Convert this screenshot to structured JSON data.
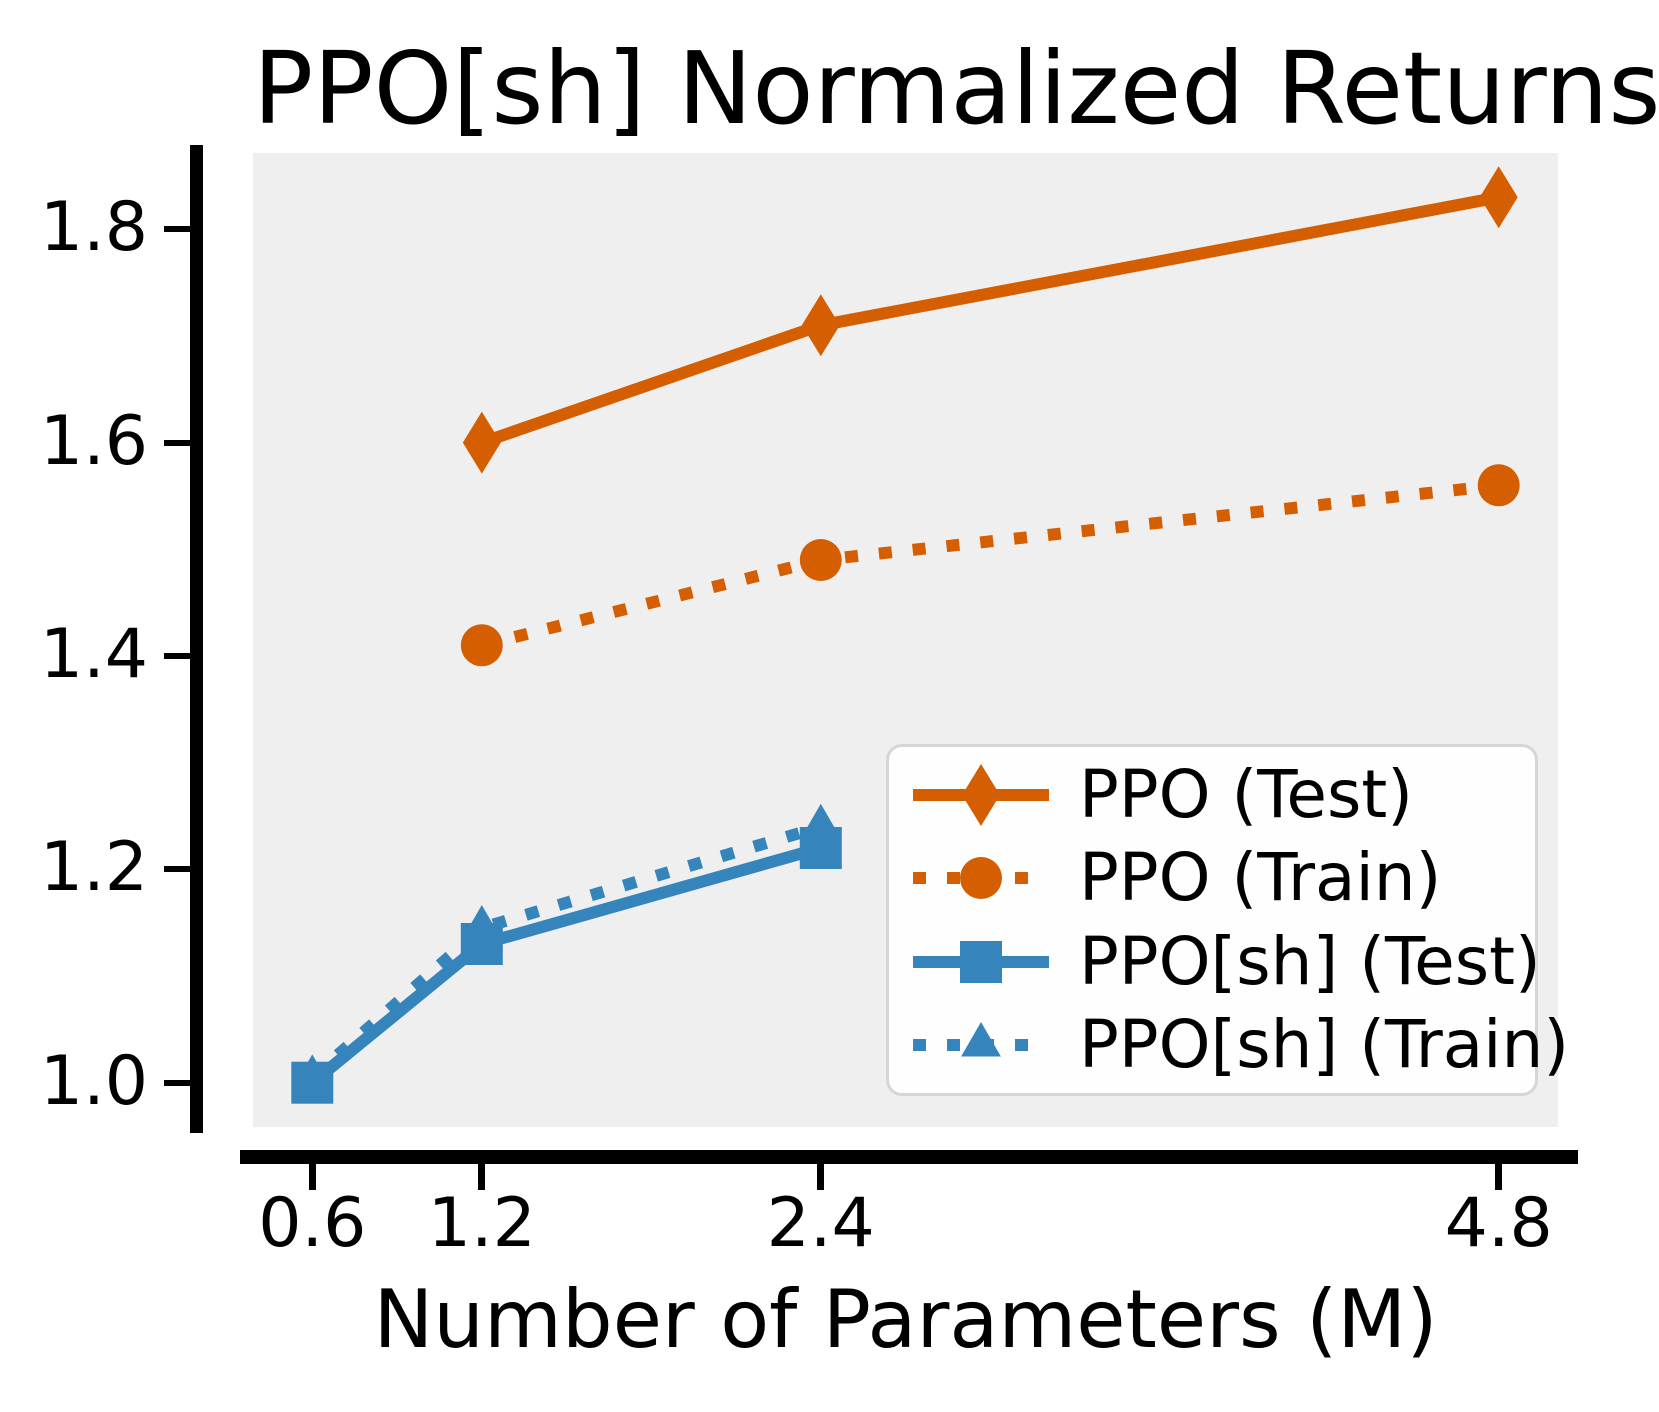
{
  "chart_data": {
    "type": "line",
    "title": "PPO[sh] Normalized Returns",
    "xlabel": "Number of Parameters (M)",
    "ylabel": "",
    "xlim": [
      0.39,
      5.01
    ],
    "ylim": [
      0.9585,
      1.8715
    ],
    "xticks": [
      0.6,
      1.2,
      2.4,
      4.8
    ],
    "xtick_labels": [
      "0.6",
      "1.2",
      "2.4",
      "4.8"
    ],
    "yticks": [
      1.0,
      1.2,
      1.4,
      1.6,
      1.8
    ],
    "ytick_labels": [
      "1.0",
      "1.2",
      "1.4",
      "1.6",
      "1.8"
    ],
    "grid": false,
    "legend_position": "lower right",
    "plot_bg_color": "#efefef",
    "figure_bg_color": "#ffffff",
    "spine_color": "#000000",
    "legend_border_color": "#d6d6d6",
    "line_width": 12,
    "dotted_dash": "13 21",
    "series": [
      {
        "name": "PPO (Test)",
        "color": "#d55e00",
        "line": "solid",
        "marker": "thin-diamond",
        "x": [
          1.2,
          2.4,
          4.8
        ],
        "y": [
          1.6,
          1.71,
          1.83
        ]
      },
      {
        "name": "PPO (Train)",
        "color": "#d55e00",
        "line": "dotted",
        "marker": "circle",
        "x": [
          1.2,
          2.4,
          4.8
        ],
        "y": [
          1.41,
          1.49,
          1.56
        ]
      },
      {
        "name": "PPO[sh] (Test)",
        "color": "#3585bc",
        "line": "solid",
        "marker": "square",
        "x": [
          0.6,
          1.2,
          2.4
        ],
        "y": [
          1.0,
          1.13,
          1.22
        ]
      },
      {
        "name": "PPO[sh] (Train)",
        "color": "#3585bc",
        "line": "dotted",
        "marker": "triangle",
        "x": [
          0.6,
          1.2,
          2.4
        ],
        "y": [
          1.005,
          1.145,
          1.24
        ]
      }
    ]
  }
}
